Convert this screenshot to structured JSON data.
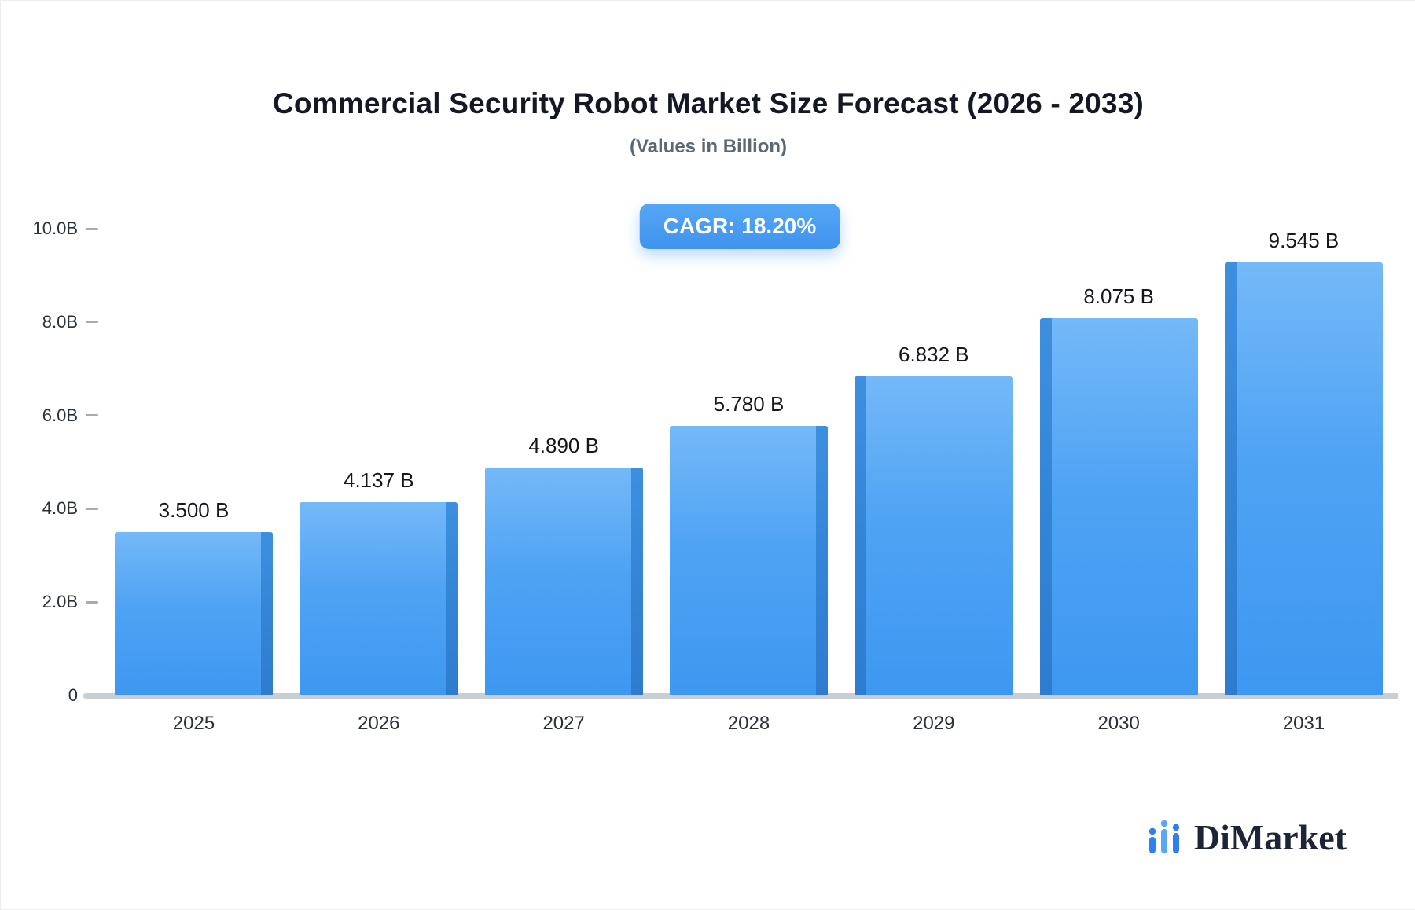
{
  "chart": {
    "title": "Commercial Security Robot Market Size Forecast (2026 - 2033)",
    "subtitle": "(Values in Billion)",
    "cagr_label": "CAGR: 18.20%"
  },
  "chart_data": {
    "type": "bar",
    "title": "Commercial Security Robot Market Size Forecast (2026 - 2033)",
    "subtitle": "(Values in Billion)",
    "categories": [
      "2025",
      "2026",
      "2027",
      "2028",
      "2029",
      "2030",
      "2031"
    ],
    "values": [
      3.5,
      4.137,
      4.89,
      5.78,
      6.832,
      8.075,
      9.545
    ],
    "value_labels": [
      "3.500 B",
      "4.137 B",
      "4.890 B",
      "5.780 B",
      "6.832 B",
      "8.075 B",
      "9.545 B"
    ],
    "xlabel": "",
    "ylabel": "",
    "ylim": [
      0,
      10
    ],
    "y_ticks": [
      {
        "label": "0",
        "value": 0
      },
      {
        "label": "2.0B",
        "value": 2
      },
      {
        "label": "4.0B",
        "value": 4
      },
      {
        "label": "6.0B",
        "value": 6
      },
      {
        "label": "8.0B",
        "value": 8
      },
      {
        "label": "10.0B",
        "value": 10
      }
    ],
    "annotation": "CAGR: 18.20%",
    "grid": false,
    "legend": "none"
  },
  "branding": {
    "logo_text": "DiMarket"
  },
  "colors": {
    "accent": "#4c9ef2",
    "bar_top": "#74b9f8",
    "bar_bottom": "#3e97f0",
    "bar_edge": "#2e80d3",
    "baseline": "#c9ced4",
    "title_text": "#141824",
    "subtitle_text": "#5b6676",
    "logo_text": "#1c2435"
  },
  "icons": {
    "logo_icon": "mini-bar-chart-icon"
  }
}
